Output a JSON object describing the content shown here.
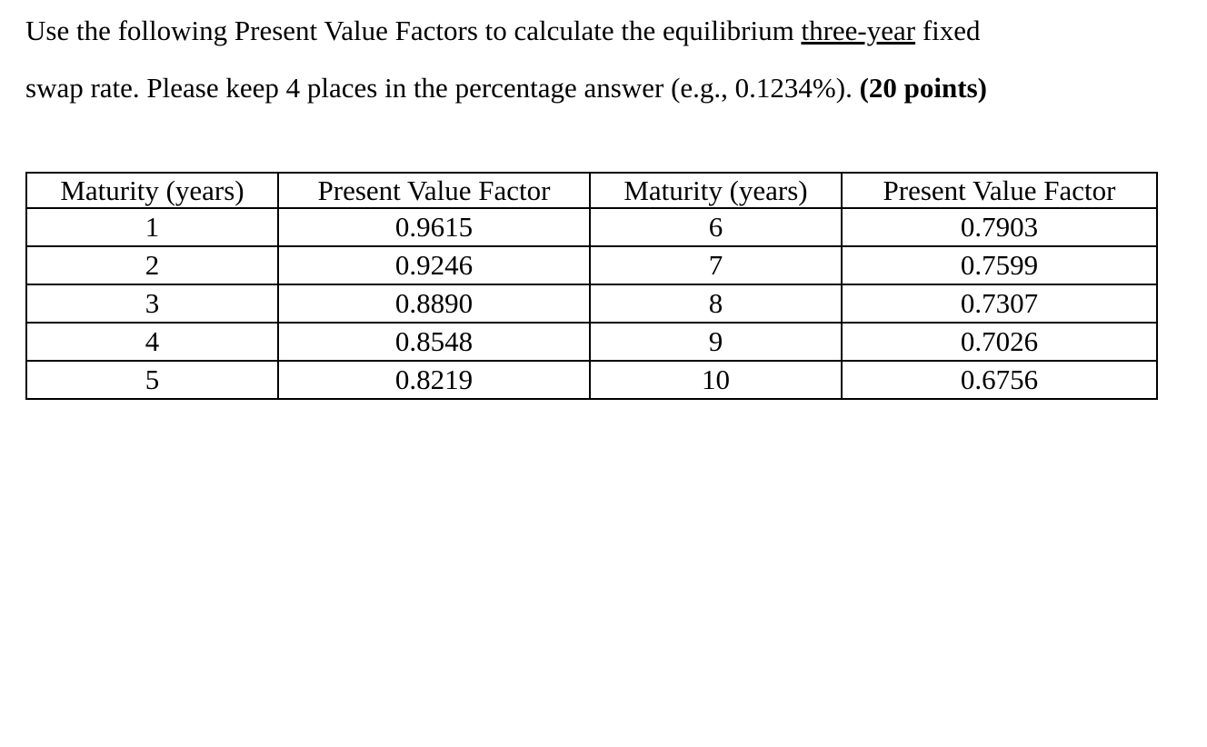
{
  "page": {
    "background_color": "#ffffff",
    "text_color": "#000000"
  },
  "question": {
    "line1": {
      "part1": "Use the following Present Value Factors to calculate the equilibrium ",
      "underlined": "three-year",
      "part2": " fixed"
    },
    "line2": {
      "part1": "swap rate. Please keep 4 places in the percentage answer (e.g., 0.1234%). ",
      "points_bold": "(20 points)"
    }
  },
  "table": {
    "headers": [
      "Maturity (years)",
      "Present Value Factor",
      "Maturity (years)",
      "Present Value Factor"
    ],
    "rows": [
      [
        "1",
        "0.9615",
        "6",
        "0.7903"
      ],
      [
        "2",
        "0.9246",
        "7",
        "0.7599"
      ],
      [
        "3",
        "0.8890",
        "8",
        "0.7307"
      ],
      [
        "4",
        "0.8548",
        "9",
        "0.7026"
      ],
      [
        "5",
        "0.8219",
        "10",
        "0.6756"
      ]
    ]
  }
}
